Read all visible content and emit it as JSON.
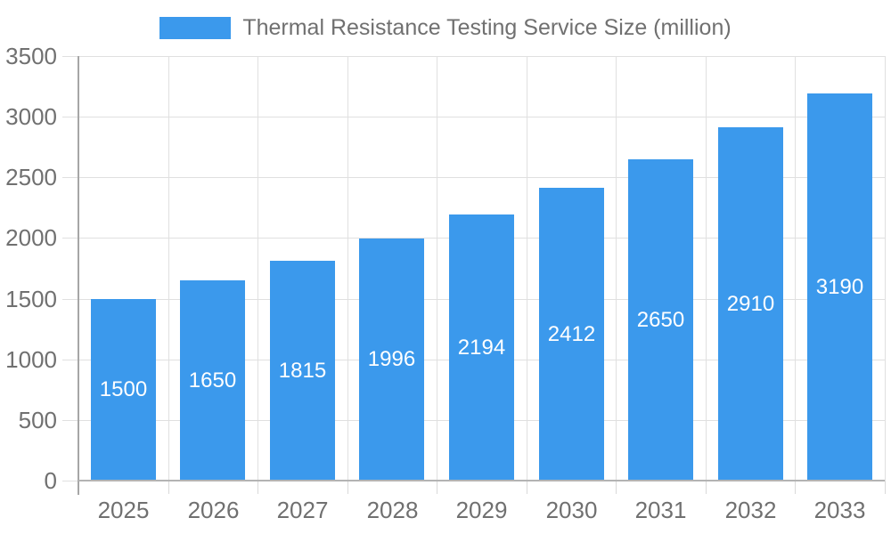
{
  "chart_data": {
    "type": "bar",
    "title": "Thermal Resistance Testing Service Size (million)",
    "categories": [
      "2025",
      "2026",
      "2027",
      "2028",
      "2029",
      "2030",
      "2031",
      "2032",
      "2033"
    ],
    "values": [
      1500,
      1650,
      1815,
      1996,
      2194,
      2412,
      2650,
      2910,
      3190
    ],
    "xlabel": "",
    "ylabel": "",
    "ylim": [
      0,
      3500
    ],
    "yticks": [
      0,
      500,
      1000,
      1500,
      2000,
      2500,
      3000,
      3500
    ],
    "grid": true,
    "bar_labels_visible": true,
    "legend": {
      "position": "top",
      "entries": [
        {
          "label": "Thermal Resistance Testing Service Size (million)",
          "swatch_color": "#3b99ec"
        }
      ]
    },
    "colors": {
      "bar": "#3b99ec",
      "bar_label_text": "#ffffff",
      "axis_text": "#707070",
      "gridline": "#e0e0e0",
      "y_axis_line": "#a6a6a6",
      "x_axis_line": "#b3b3b3",
      "background": "#ffffff"
    }
  }
}
